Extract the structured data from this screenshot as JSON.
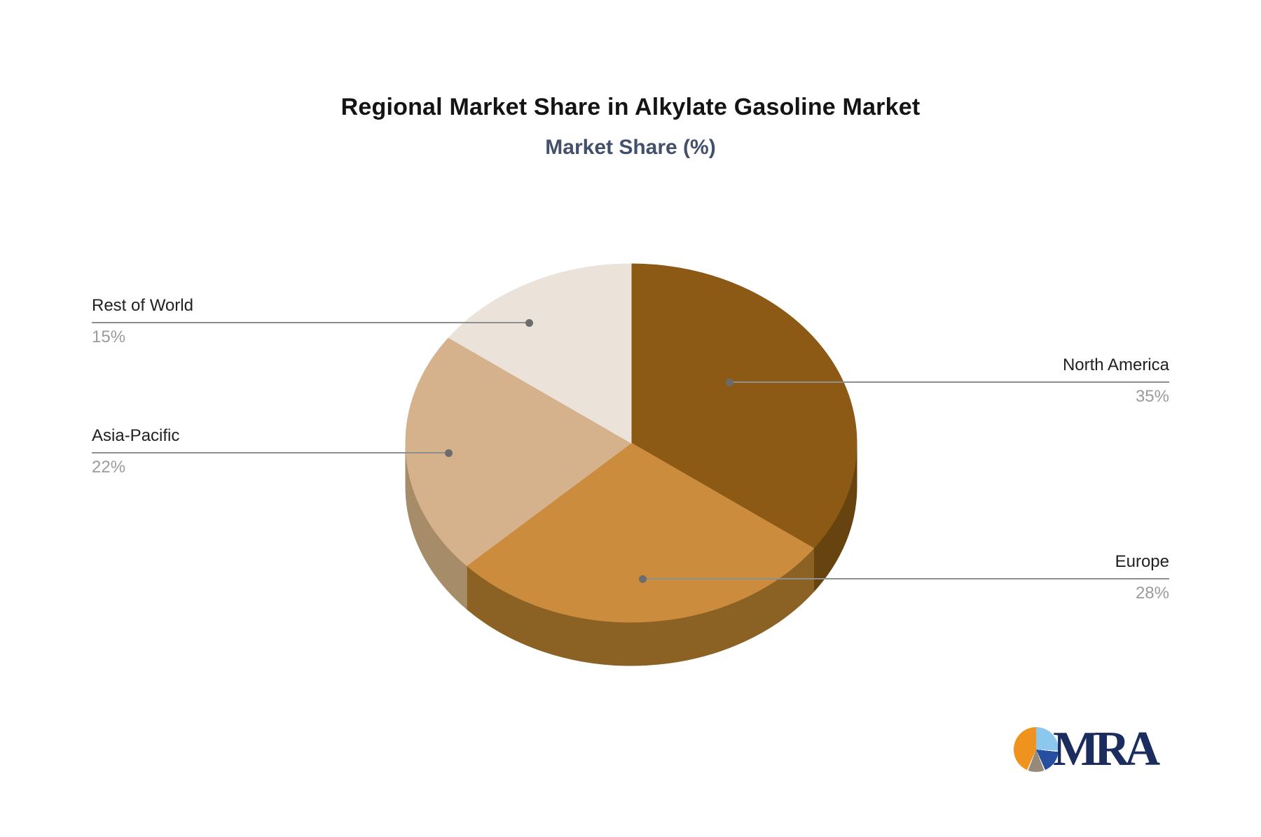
{
  "chart_data": {
    "type": "pie",
    "title": "Regional Market Share in Alkylate Gasoline Market",
    "subtitle": "Market Share (%)",
    "unit": "%",
    "categories": [
      "North America",
      "Europe",
      "Asia-Pacific",
      "Rest of World"
    ],
    "values": [
      35,
      28,
      22,
      15
    ],
    "start_angle_deg": 0,
    "direction": "clockwise",
    "style": "3d",
    "legend": "none",
    "labels_layout": "callout-leader-lines",
    "slices": [
      {
        "label": "North America",
        "value": 35,
        "pct": "35%",
        "color": "#8D5A16",
        "side_color": "#66430F"
      },
      {
        "label": "Europe",
        "value": 28,
        "pct": "28%",
        "color": "#CB8C3E",
        "side_color": "#8C6124"
      },
      {
        "label": "Asia-Pacific",
        "value": 22,
        "pct": "22%",
        "color": "#D5B28C",
        "side_color": "#A68C69"
      },
      {
        "label": "Rest of World",
        "value": 15,
        "pct": "15%",
        "color": "#EBE2D9",
        "side_color": "#BCA98F"
      }
    ],
    "label_text_color": "#212121",
    "pct_text_color": "#9B9B9B",
    "leader_line_color": "#8F8F8F",
    "title_color": "#141414",
    "subtitle_color": "#42506B"
  },
  "logo": {
    "wordmark": "MRA",
    "icon": "pie-chart-icon",
    "wordmark_color": "#1B2D5E",
    "icon_colors": [
      "#F0921E",
      "#8CC8EE",
      "#26509F",
      "#988A7B"
    ]
  }
}
